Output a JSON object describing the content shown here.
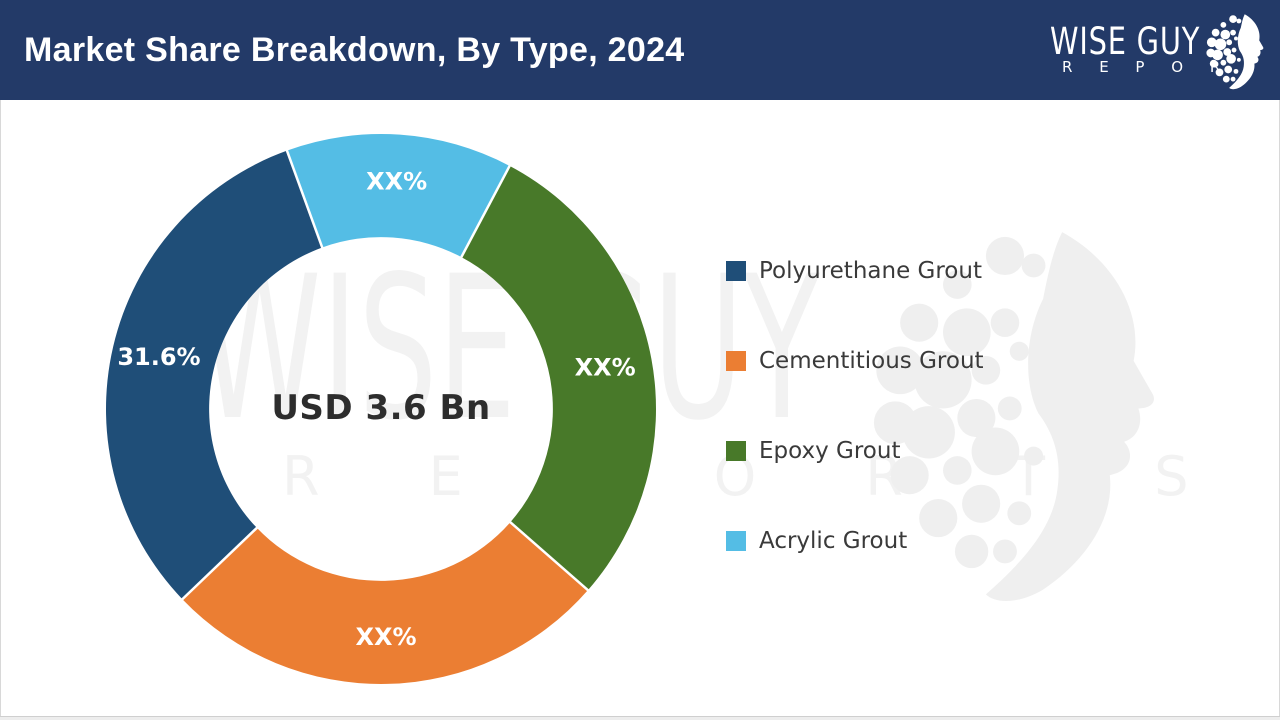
{
  "header": {
    "title": "Market Share Breakdown, By Type, 2024",
    "logo": {
      "line1": "WISE GUY",
      "line2": "R E P O R T S"
    }
  },
  "watermark": {
    "line1": "WISE GUY",
    "line2": "R E P O R T S"
  },
  "chart_data": {
    "type": "donut",
    "title": "Market Share Breakdown, By Type, 2024",
    "center_label": "USD 3.6 Bn",
    "legend_position": "right",
    "donut_hole_ratio": 0.625,
    "start_angle_deg_clockwise_from_top": -20,
    "draw_order": "counterclockwise in legend order",
    "segments": [
      {
        "label": "Polyurethane Grout",
        "value": 31.6,
        "display": "31.6%",
        "color": "#1F4E78"
      },
      {
        "label": "Cementitious Grout",
        "value": 26.4,
        "display": "XX%",
        "color": "#EB7E33"
      },
      {
        "label": "Epoxy Grout",
        "value": 28.7,
        "display": "XX%",
        "color": "#487929"
      },
      {
        "label": "Acrylic Grout",
        "value": 13.3,
        "display": "XX%",
        "color": "#54BDE5"
      }
    ]
  }
}
